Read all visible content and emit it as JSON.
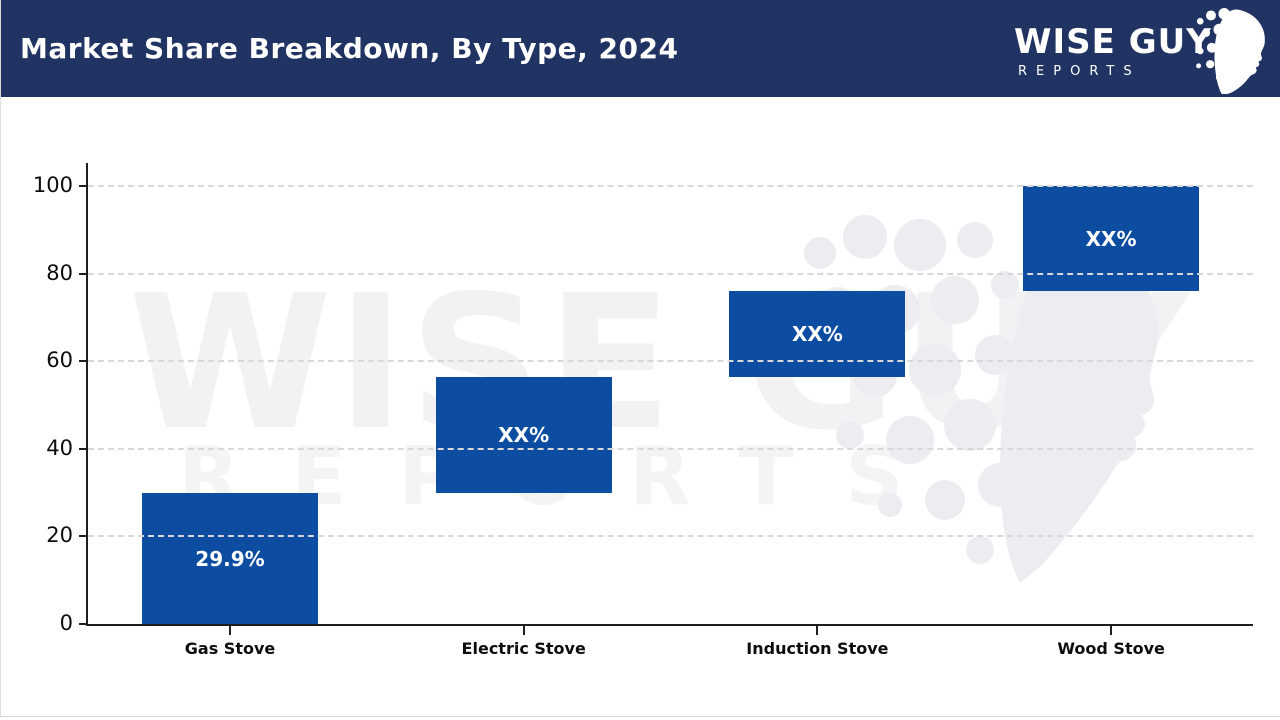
{
  "header": {
    "title": "Market Share Breakdown, By Type, 2024",
    "bg_color": "#203362",
    "logo": {
      "line1": "WISE GUY",
      "line2": "REPORTS"
    }
  },
  "watermark": {
    "line1": "WISE GUY",
    "line2": "REPORTS"
  },
  "colors": {
    "bar_blue": "#0c4da2",
    "header_navy": "#203362",
    "gridline_gray": "#d8d8d8",
    "watermark_gray": "#f2f2f5",
    "axis_black": "#1f1f1f"
  },
  "chart_data": {
    "type": "bar",
    "subtype": "floating-waterfall",
    "title": "Market Share Breakdown, By Type, 2024",
    "categories": [
      "Gas Stove",
      "Electric Stove",
      "Induction Stove",
      "Wood Stove"
    ],
    "segments": [
      {
        "category": "Gas Stove",
        "start": 0,
        "end": 29.9,
        "label": "29.9%"
      },
      {
        "category": "Electric Stove",
        "start": 29.9,
        "end": 56.5,
        "label": "XX%"
      },
      {
        "category": "Induction Stove",
        "start": 56.5,
        "end": 76,
        "label": "XX%"
      },
      {
        "category": "Wood Stove",
        "start": 76,
        "end": 100,
        "label": "XX%"
      }
    ],
    "xlabel": "",
    "ylabel": "",
    "yticks": [
      0,
      20,
      40,
      60,
      80,
      100
    ],
    "ylim": [
      0,
      105
    ],
    "grid": "horizontal-dashed",
    "legend": "none",
    "bar_color": "#0c4da2"
  }
}
